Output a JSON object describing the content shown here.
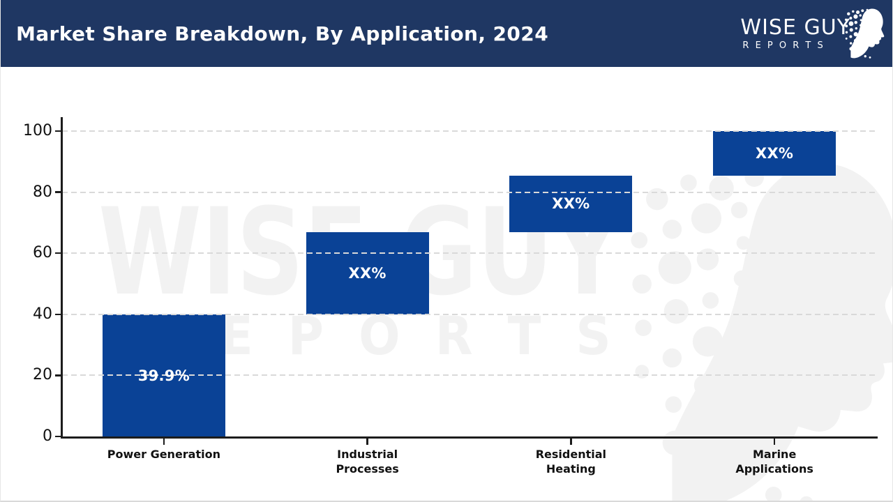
{
  "header": {
    "title": "Market Share Breakdown, By Application, 2024"
  },
  "logo": {
    "wordmark": "WISE GUY",
    "subtext": "R E P O R T S",
    "icon": "dotted-face-profile-icon"
  },
  "watermark": {
    "wordmark": "WISE GUY",
    "subtext": "R E P O R T S",
    "icon": "dotted-face-profile-icon"
  },
  "chart_data": {
    "type": "bar",
    "subtype": "stacked-waterfall-percent",
    "title": "Market Share Breakdown, By Application, 2024",
    "categories": [
      "Power Generation",
      "Industrial Processes",
      "Residential Heating",
      "Marine Applications"
    ],
    "bars": [
      {
        "category": "Power Generation",
        "label_lines": [
          "Power Generation"
        ],
        "start": 0,
        "end": 39.9,
        "value": 39.9,
        "value_label": "39.9%"
      },
      {
        "category": "Industrial Processes",
        "label_lines": [
          "Industrial",
          "Processes"
        ],
        "start": 39.9,
        "end": 66.9,
        "value": 27.0,
        "value_label": "XX%"
      },
      {
        "category": "Residential Heating",
        "label_lines": [
          "Residential",
          "Heating"
        ],
        "start": 66.9,
        "end": 85.4,
        "value": 18.5,
        "value_label": "XX%"
      },
      {
        "category": "Marine Applications",
        "label_lines": [
          "Marine",
          "Applications"
        ],
        "start": 85.4,
        "end": 100,
        "value": 14.6,
        "value_label": "XX%"
      }
    ],
    "ylim": [
      0,
      100
    ],
    "yticks": [
      0,
      20,
      40,
      60,
      80,
      100
    ],
    "grid": "horizontal-dashed",
    "legend": "none"
  },
  "colors": {
    "header_bg": "#1f3763",
    "header_text": "#ffffff",
    "bar_fill": "#0a4296",
    "bar_label": "#ffffff",
    "gridline": "#d9d9d9",
    "axis": "#1c1c1c",
    "tick_label": "#111111",
    "watermark": "#f2f2f2",
    "background": "#ffffff"
  }
}
